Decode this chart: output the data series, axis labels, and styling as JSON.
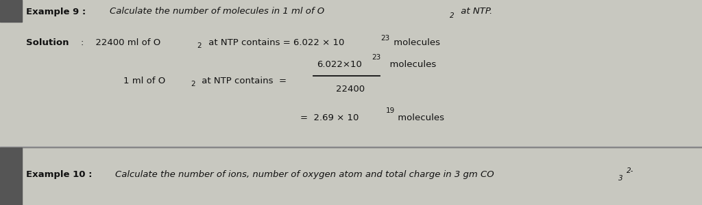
{
  "bg_color": "#c8c8c0",
  "text_color": "#111111",
  "separator_color": "#666666",
  "accent_color": "#555555",
  "example9_bold": "Example 9 : ",
  "example9_italic_pre": "Calculate the number of molecules in 1 ml of O",
  "example9_italic_sub": "2",
  "example9_italic_post": " at NTP.",
  "solution_bold": "Solution",
  "line1_pre": ":    22400 ml of O",
  "line1_sub": "2",
  "line1_post": " at NTP contains = 6.022 × 10",
  "line1_sup": "23",
  "line1_end": " molecules",
  "frac_prefix_pre": "1 ml of O",
  "frac_prefix_sub": "2",
  "frac_prefix_post": " at NTP contains  =",
  "frac_num_pre": "6.022×10",
  "frac_num_sup": "23",
  "frac_num_post": "  molecules",
  "frac_den": "22400",
  "result_pre": "=  2.69 × 10",
  "result_sup": "19",
  "result_post": " molecules",
  "example10_bold": "Example 10 : ",
  "example10_italic_pre": "Calculate the number of ions, number of oxygen atom and total charge in 3 gm CO",
  "example10_sub": "3",
  "example10_sup": "2-"
}
